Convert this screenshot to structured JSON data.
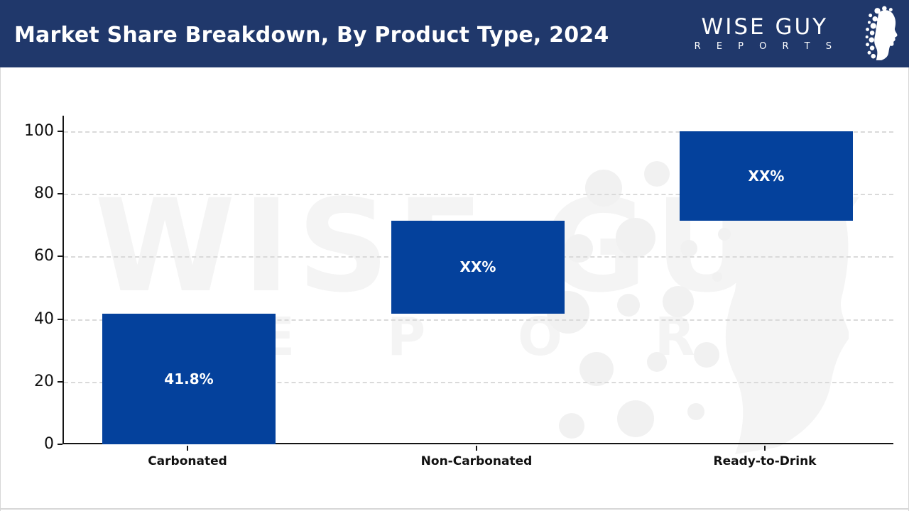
{
  "header": {
    "title": "Market Share Breakdown, By Product Type, 2024",
    "logo": {
      "line1": "WISE GUY",
      "line2": "R E P O R T S"
    }
  },
  "watermark": {
    "line1": "WISE GUY",
    "line2": "R E P O R T S"
  },
  "chart_data": {
    "type": "bar",
    "subtype": "waterfall-stacked",
    "title": "Market Share Breakdown, By Product Type, 2024",
    "categories": [
      "Carbonated",
      "Non-Carbonated",
      "Ready-to-Drink"
    ],
    "segments": [
      {
        "category": "Carbonated",
        "base": 0,
        "value": 41.8,
        "top": 41.8,
        "label": "41.8%"
      },
      {
        "category": "Non-Carbonated",
        "base": 41.8,
        "value": 29.7,
        "top": 71.5,
        "label": "XX%"
      },
      {
        "category": "Ready-to-Drink",
        "base": 71.5,
        "value": 28.5,
        "top": 100,
        "label": "XX%"
      }
    ],
    "yticks": [
      0,
      20,
      40,
      60,
      80,
      100
    ],
    "ylim": [
      0,
      105
    ],
    "xlabel": "",
    "ylabel": "",
    "legend": "none",
    "grid": {
      "horizontal": true,
      "style": "dashed"
    },
    "colors": {
      "bar": "#04419c",
      "header_bg": "#20386b",
      "grid": "#dadada",
      "axis": "#151515",
      "bar_label_text": "#ffffff",
      "watermark": "#f4f4f4"
    }
  }
}
